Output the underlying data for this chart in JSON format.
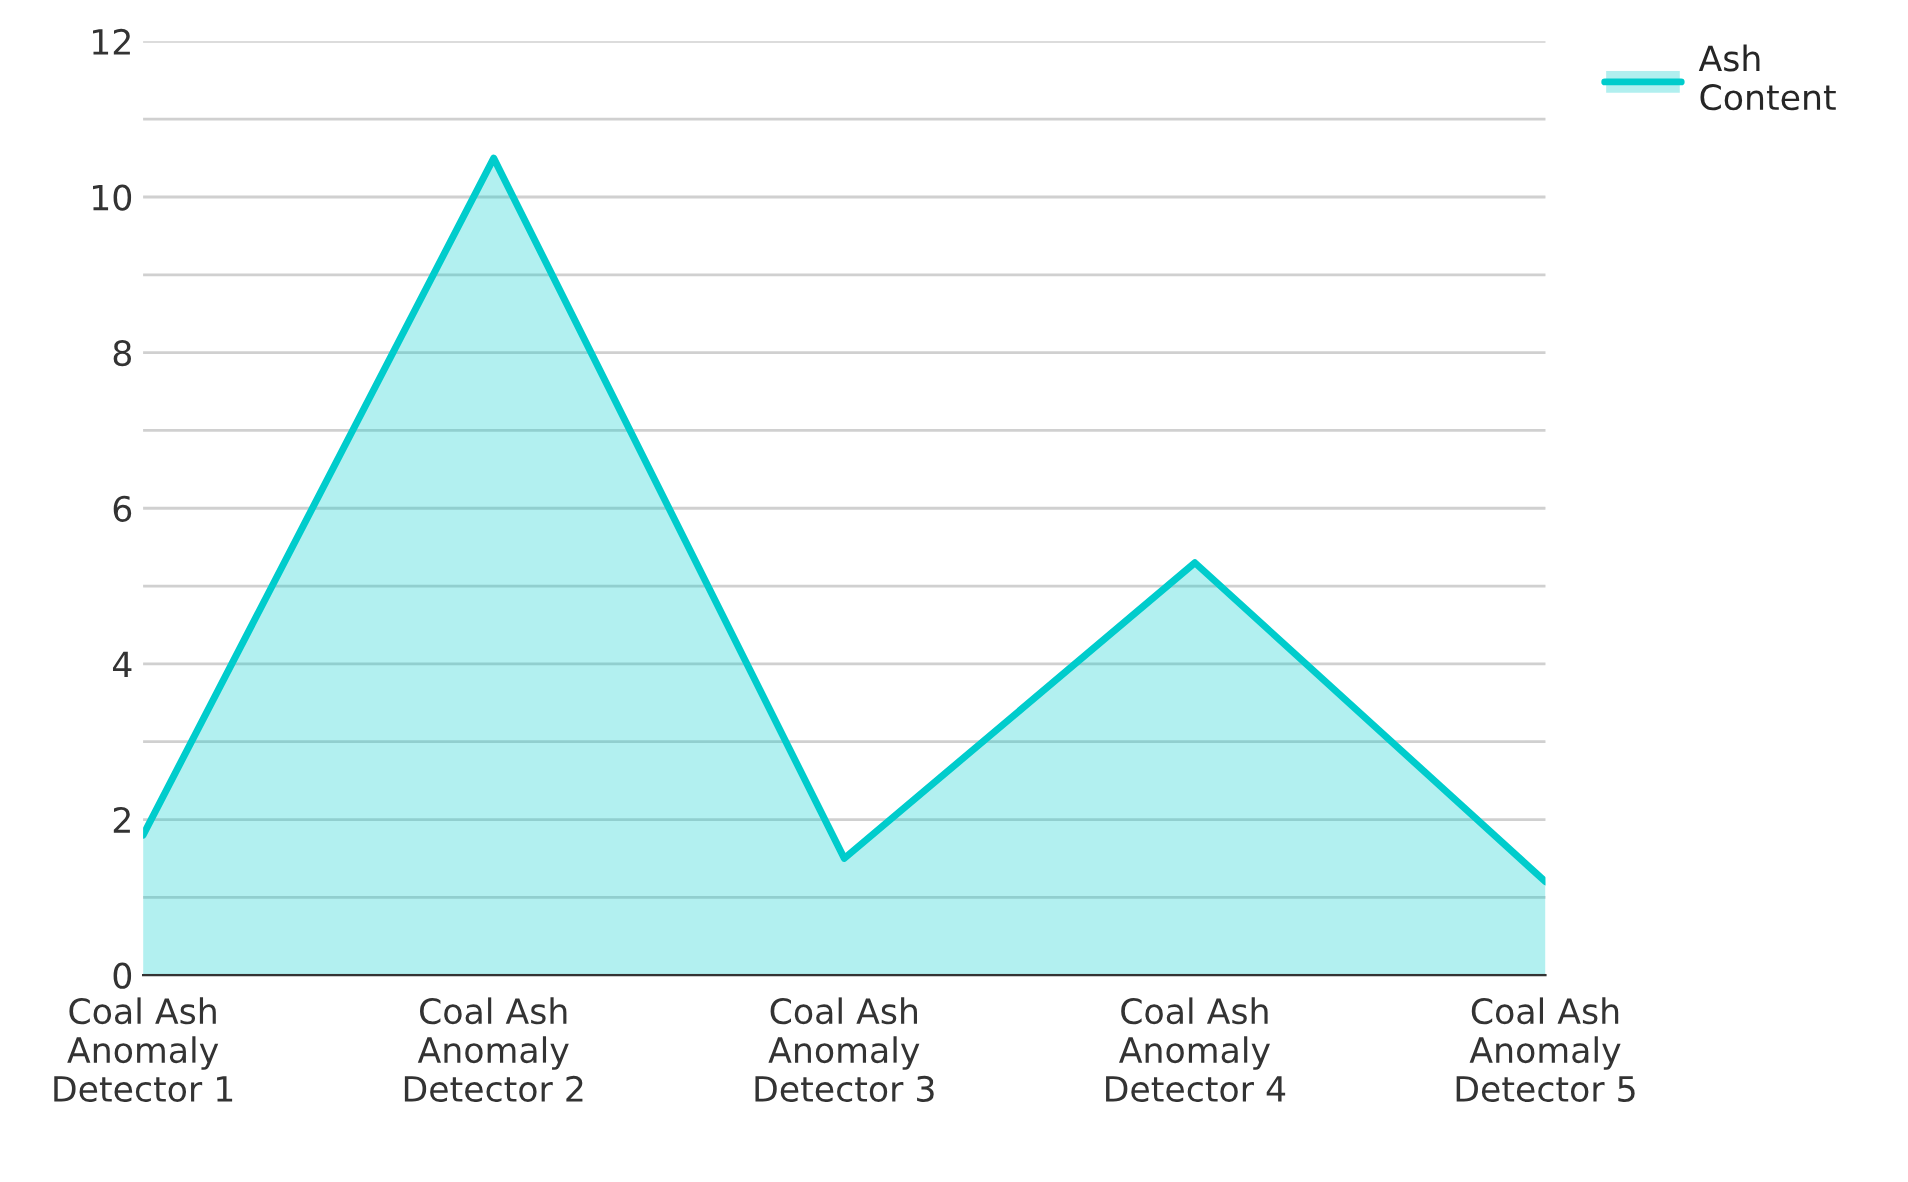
{
  "chart_data": {
    "type": "area",
    "categories": [
      "Coal Ash\nAnomaly\nDetector 1",
      "Coal Ash\nAnomaly\nDetector 2",
      "Coal Ash\nAnomaly\nDetector 3",
      "Coal Ash\nAnomaly\nDetector 4",
      "Coal Ash\nAnomaly\nDetector 5"
    ],
    "series": [
      {
        "name": "Ash\nContent",
        "color": "#00cccc",
        "values": [
          1.8,
          10.5,
          1.5,
          5.3,
          1.2
        ]
      }
    ],
    "ylim": [
      0,
      12
    ],
    "yticks": [
      0,
      {
        "value": 1,
        "label": null
      },
      2,
      {
        "value": 3,
        "label": null
      },
      4,
      {
        "value": 5,
        "label": null
      },
      6,
      {
        "value": 7,
        "label": null
      },
      8,
      {
        "value": 9,
        "label": null
      },
      10,
      {
        "value": 11,
        "label": null
      },
      12
    ],
    "grid": "y",
    "legend": "top right"
  }
}
